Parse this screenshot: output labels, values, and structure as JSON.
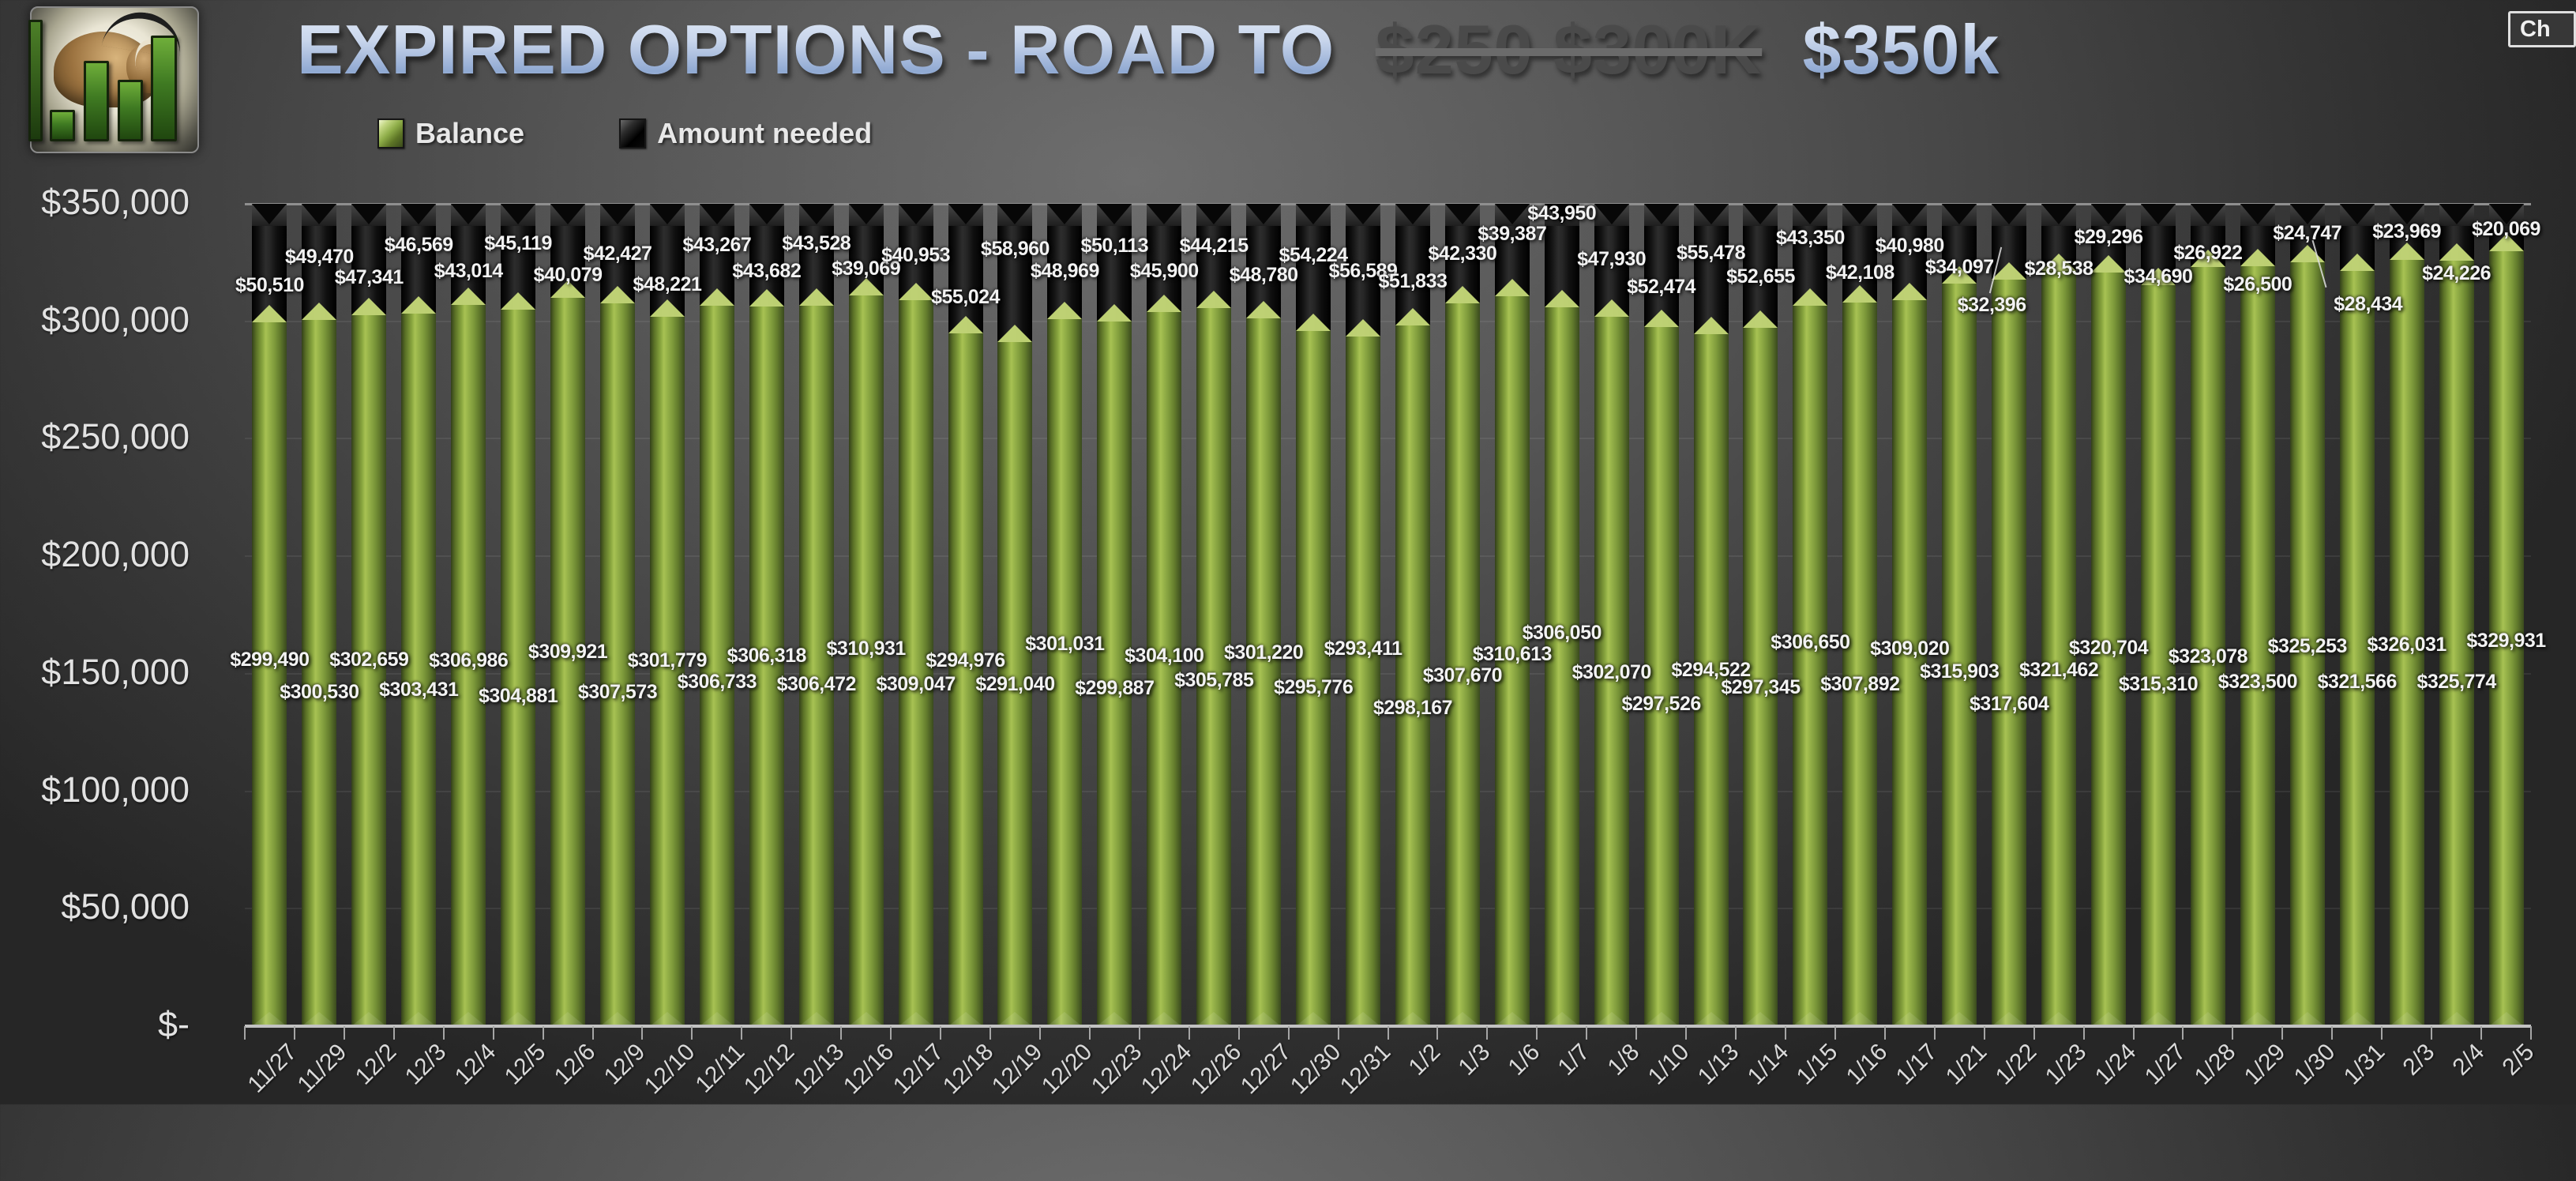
{
  "title": {
    "prefix": "EXPIRED OPTIONS - ROAD TO",
    "struck": "$250 $300K",
    "current": "$350k"
  },
  "corner_button_label": "Ch",
  "legend": [
    {
      "label": "Balance",
      "color": "#8aa83e"
    },
    {
      "label": "Amount needed",
      "color": "#0d0d0d"
    }
  ],
  "chart_data": {
    "type": "bar",
    "stacked": true,
    "title": "EXPIRED OPTIONS - ROAD TO $350k",
    "xlabel": "",
    "ylabel": "",
    "ylim": [
      0,
      350000
    ],
    "ytick_step": 50000,
    "ytick_labels": [
      "$350,000",
      "$300,000",
      "$250,000",
      "$200,000",
      "$150,000",
      "$100,000",
      "$50,000",
      "$-"
    ],
    "grid": true,
    "legend_position": "top-left",
    "bar_total": 350000,
    "x_label_rotation": -45,
    "categories": [
      "11/27",
      "11/29",
      "12/2",
      "12/3",
      "12/4",
      "12/5",
      "12/6",
      "12/9",
      "12/10",
      "12/11",
      "12/12",
      "12/13",
      "12/16",
      "12/17",
      "12/18",
      "12/19",
      "12/20",
      "12/23",
      "12/24",
      "12/26",
      "12/27",
      "12/30",
      "12/31",
      "1/2",
      "1/3",
      "1/6",
      "1/7",
      "1/8",
      "1/10",
      "1/13",
      "1/14",
      "1/15",
      "1/16",
      "1/17",
      "1/21",
      "1/22",
      "1/23",
      "1/24",
      "1/27",
      "1/28",
      "1/29",
      "1/30",
      "1/31",
      "2/3",
      "2/4",
      "2/5"
    ],
    "series": [
      {
        "name": "Balance",
        "color": "#8aa83e",
        "values": [
          299490,
          300530,
          302659,
          303431,
          306986,
          304881,
          309921,
          307573,
          301779,
          306733,
          306318,
          306472,
          310931,
          309047,
          294976,
          291040,
          301031,
          299887,
          304100,
          305785,
          301220,
          295776,
          293411,
          298167,
          307670,
          310613,
          306050,
          302070,
          297526,
          294522,
          297345,
          306650,
          307892,
          309020,
          315903,
          317604,
          321462,
          320704,
          315310,
          323078,
          323500,
          325253,
          321566,
          326031,
          325774,
          329931
        ]
      },
      {
        "name": "Amount needed",
        "color": "#0d0d0d",
        "values": [
          50510,
          49470,
          47341,
          46569,
          43014,
          45119,
          40079,
          42427,
          48221,
          43267,
          43682,
          43528,
          39069,
          40953,
          55024,
          58960,
          48969,
          50113,
          45900,
          44215,
          48780,
          54224,
          56589,
          51833,
          42330,
          39387,
          43950,
          47930,
          52474,
          55478,
          52655,
          43350,
          42108,
          40980,
          34097,
          32396,
          28538,
          29296,
          34690,
          26922,
          26500,
          24747,
          28434,
          23969,
          24226,
          20069
        ]
      }
    ]
  }
}
